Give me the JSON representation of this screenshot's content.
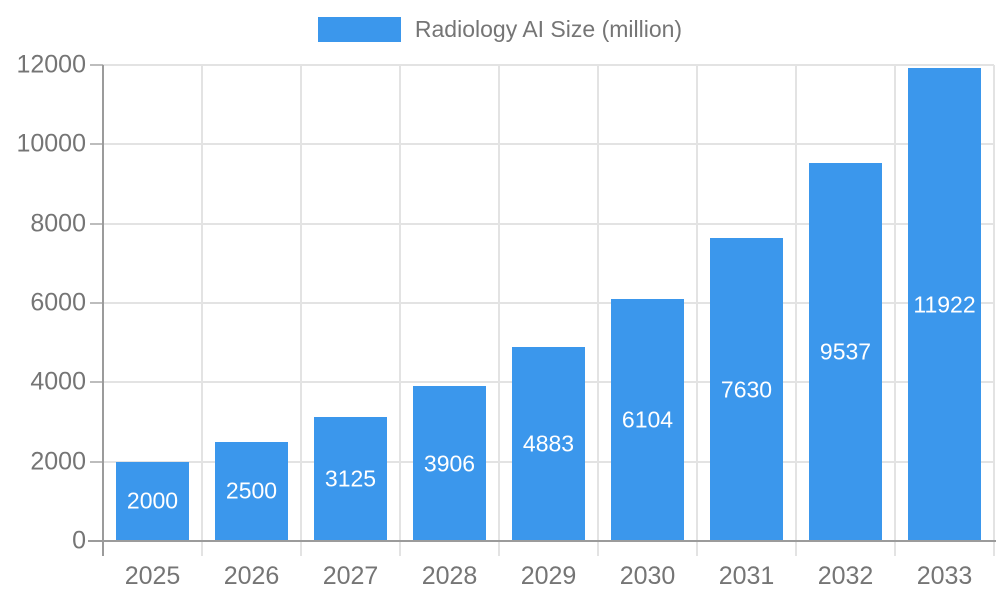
{
  "legend": {
    "label": "Radiology AI Size (million)"
  },
  "colors": {
    "bar": "#3b97ec",
    "grid": "#e3e3e3",
    "tick": "#bdbdbd",
    "axis": "#9b9b9b",
    "text": "#757575",
    "value_label": "#ffffff",
    "background": "#ffffff"
  },
  "chart_data": {
    "type": "bar",
    "categories": [
      "2025",
      "2026",
      "2027",
      "2028",
      "2029",
      "2030",
      "2031",
      "2032",
      "2033"
    ],
    "values": [
      2000,
      2500,
      3125,
      3906,
      4883,
      6104,
      7630,
      9537,
      11922
    ],
    "series_name": "Radiology AI Size (million)",
    "title": "",
    "xlabel": "",
    "ylabel": "",
    "ylim": [
      0,
      12000
    ],
    "yticks": [
      0,
      2000,
      4000,
      6000,
      8000,
      10000,
      12000
    ],
    "grid": true,
    "legend_position": "top",
    "value_labels": "inside-center-white"
  }
}
